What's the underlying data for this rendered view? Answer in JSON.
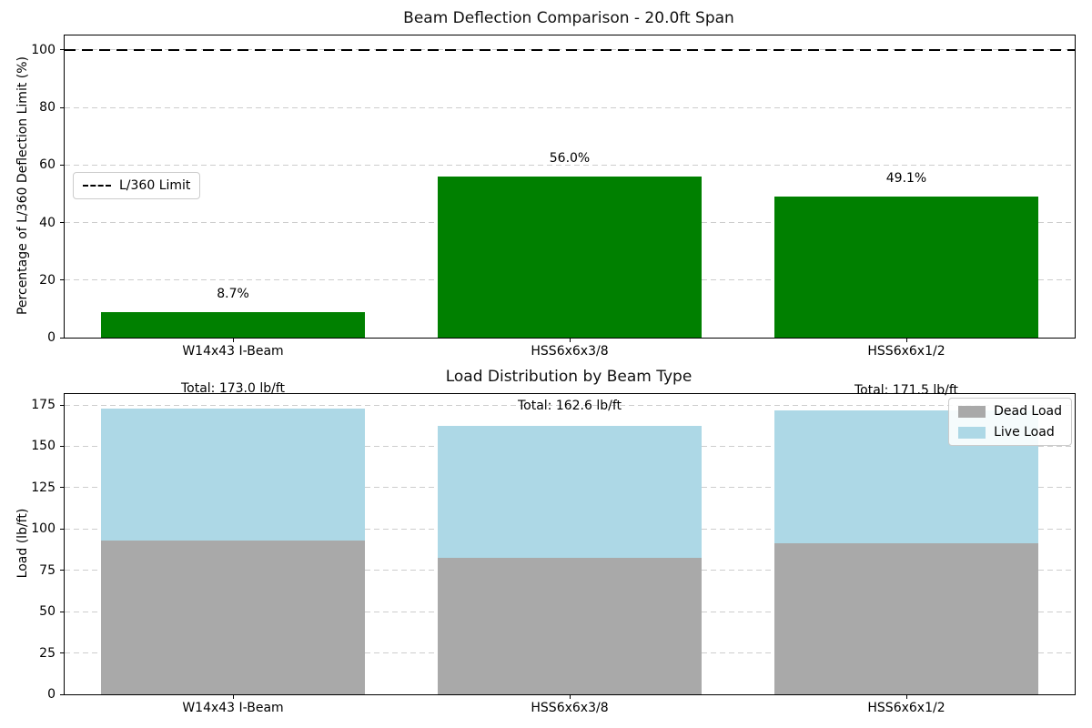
{
  "chart_data": [
    {
      "type": "bar",
      "title": "Beam Deflection Comparison - 20.0ft Span",
      "xlabel": "",
      "ylabel": "Percentage of L/360 Deflection Limit (%)",
      "categories": [
        "W14x43 I-Beam",
        "HSS6x6x3/8",
        "HSS6x6x1/2"
      ],
      "values": [
        8.7,
        56.0,
        49.1
      ],
      "bar_labels": [
        "8.7%",
        "56.0%",
        "49.1%"
      ],
      "bar_color": "#008000",
      "ylim": [
        0,
        105
      ],
      "yticks": [
        0,
        20,
        40,
        60,
        80,
        100
      ],
      "grid": "dashed horizontal",
      "ref_line": {
        "value": 100,
        "color": "#000000",
        "style": "dashed"
      },
      "legend": {
        "position": "center-left",
        "items": [
          {
            "label": "L/360 Limit",
            "swatch": "dashed-line",
            "color": "#000000"
          }
        ]
      }
    },
    {
      "type": "stacked-bar",
      "title": "Load Distribution by Beam Type",
      "xlabel": "",
      "ylabel": "Load (lb/ft)",
      "categories": [
        "W14x43 I-Beam",
        "HSS6x6x3/8",
        "HSS6x6x1/2"
      ],
      "series": [
        {
          "name": "Dead Load",
          "color": "#a9a9a9",
          "values": [
            93.0,
            82.6,
            91.5
          ]
        },
        {
          "name": "Live Load",
          "color": "#add8e6",
          "values": [
            80.0,
            80.0,
            80.0
          ]
        }
      ],
      "totals": [
        173.0,
        162.6,
        171.5
      ],
      "total_labels": [
        "Total: 173.0 lb/ft",
        "Total: 162.6 lb/ft",
        "Total: 171.5 lb/ft"
      ],
      "ylim": [
        0,
        181.65
      ],
      "yticks": [
        0,
        25,
        50,
        75,
        100,
        125,
        150,
        175
      ],
      "grid": "dashed horizontal",
      "legend": {
        "position": "top-right",
        "items": [
          {
            "label": "Dead Load",
            "swatch": "patch",
            "color": "#a9a9a9"
          },
          {
            "label": "Live Load",
            "swatch": "patch",
            "color": "#add8e6"
          }
        ]
      }
    }
  ]
}
